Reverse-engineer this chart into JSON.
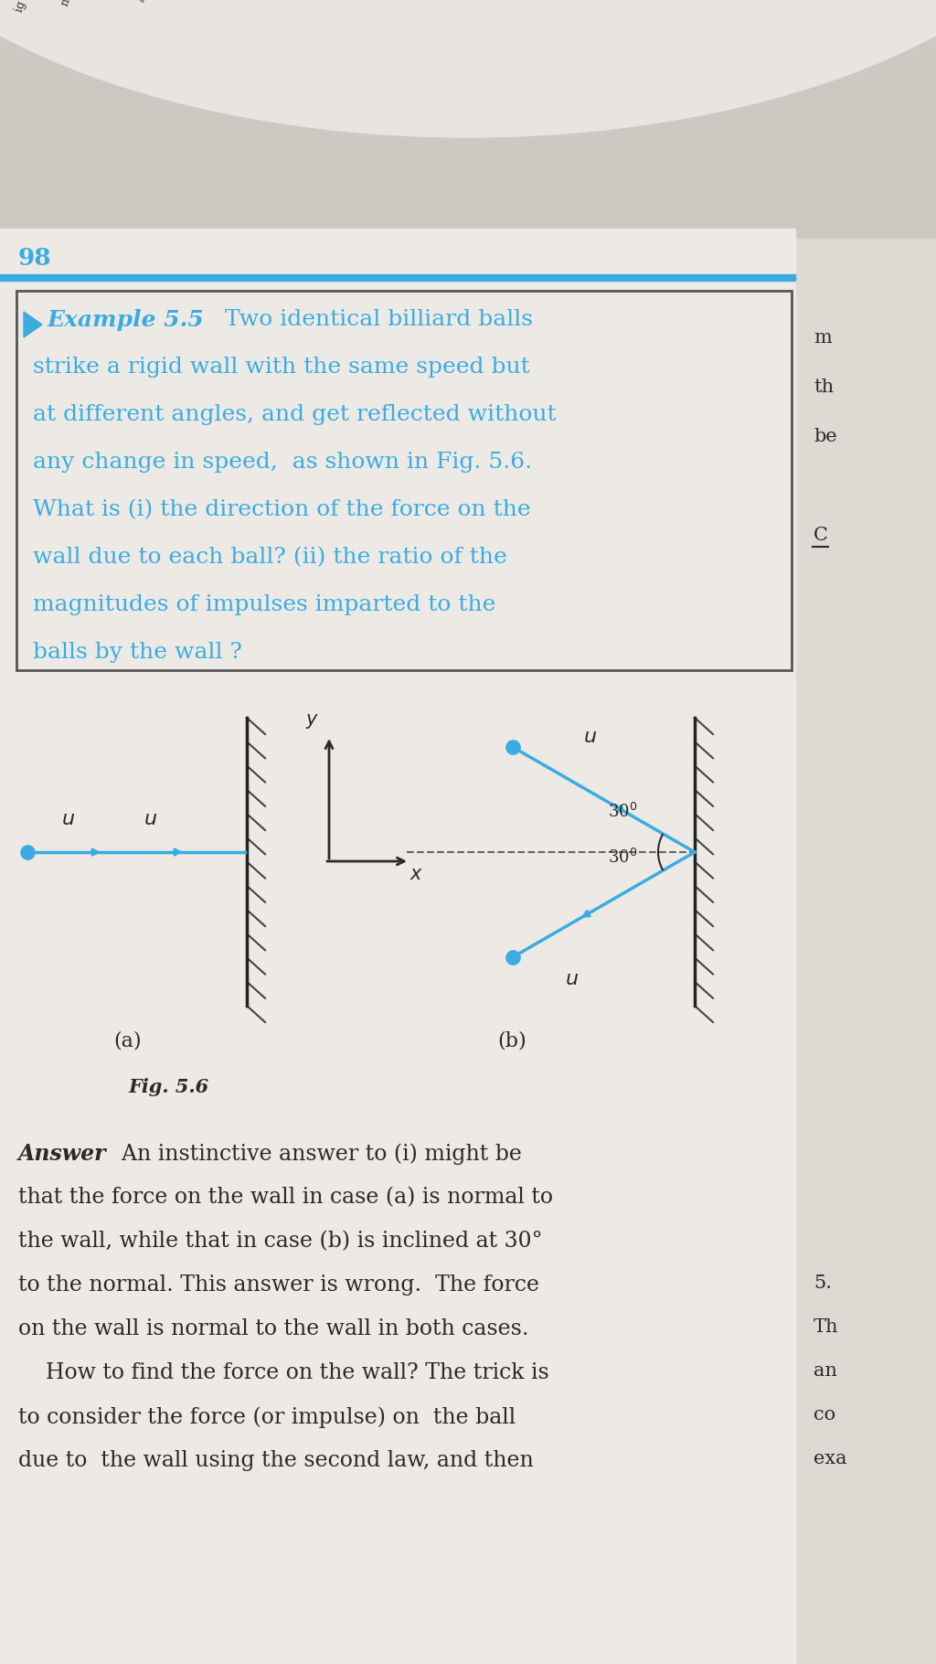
{
  "page_number": "98",
  "teal_color": "#3AACE2",
  "dark_color": "#2a2a2a",
  "bg_color": "#ddd9d3",
  "page_bg": "#e8e4df",
  "white_area": "#edeae5",
  "box_edge": "#555555",
  "header_bar": "#3AACE2",
  "example_label": "Example 5.5",
  "example_rest_line1": "  Two identical billiard balls",
  "example_line2": "strike a rigid wall with the same speed but",
  "example_line3": "at different angles, and get reflected without",
  "example_line4": "any change in speed,  as shown in Fig. 5.6.",
  "example_line5": "What is (i) the direction of the force on the",
  "example_line6": "wall due to each ball? (ii) the ratio of the",
  "example_line7": "magnitudes of impulses imparted to the",
  "example_line8": "balls by the wall ?",
  "fig_caption": "Fig. 5.6",
  "answer_word": "Answer",
  "answer_rest1": "  An instinctive answer to (i) might be",
  "answer_line2": "that the force on the wall in case (a) is normal to",
  "answer_line3": "the wall, while that in case (b) is inclined at 30°",
  "answer_line4": "to the normal. This answer is wrong.  The force",
  "answer_line5": "on the wall is normal to the wall in both cases.",
  "answer_line6": "    How to find the force on the wall? The trick is",
  "answer_line7": "to consider the force (or impulse) on  the ball",
  "answer_line8": "due to  the wall using the second law, and then",
  "right_col": [
    "m",
    "th",
    "be",
    "",
    "C"
  ],
  "right_bottom": [
    "5.",
    "Th",
    "an",
    "co",
    "exa"
  ]
}
